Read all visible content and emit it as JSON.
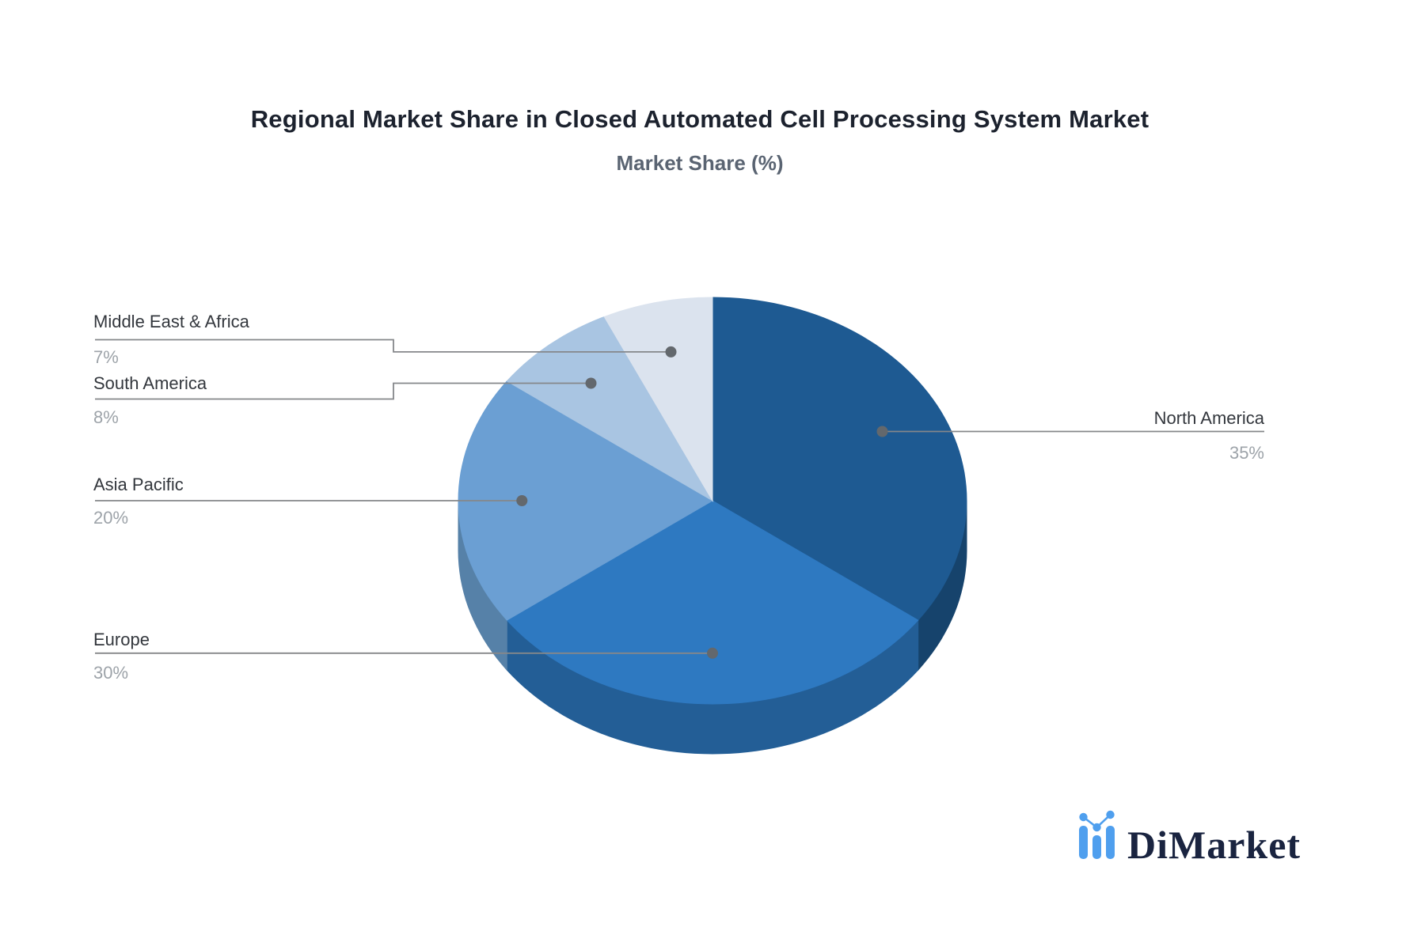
{
  "title": "Regional Market Share in Closed Automated Cell Processing System Market",
  "subtitle": "Market Share (%)",
  "brand": {
    "name": "DiMarket",
    "icon": "bar-chart-dots-icon"
  },
  "colors": {
    "title": "#1c222e",
    "subtitle": "#5a6472",
    "slice_label": "#33373d",
    "percent_label": "#9da3a9",
    "connector": "#85878a",
    "connector_dot": "#63686d",
    "logo_text": "#1a2440",
    "logo_icon": "#4f9fee"
  },
  "chart_data": {
    "type": "pie",
    "title": "Regional Market Share in Closed Automated Cell Processing System Market",
    "subtitle": "Market Share (%)",
    "unit": "%",
    "style": "3d",
    "direction": "clockwise",
    "start_angle_deg": 0,
    "legend_position": "connector-labels",
    "series": [
      {
        "name": "North America",
        "value": 35,
        "label": "35%",
        "color": "#1e5a92",
        "side_color": "#16436c",
        "label_side": "right"
      },
      {
        "name": "Europe",
        "value": 30,
        "label": "30%",
        "color": "#2e79c1",
        "side_color": "#235e96",
        "label_side": "left"
      },
      {
        "name": "Asia Pacific",
        "value": 20,
        "label": "20%",
        "color": "#6b9fd3",
        "side_color": "#5681a8",
        "label_side": "left"
      },
      {
        "name": "South America",
        "value": 8,
        "label": "8%",
        "color": "#a9c5e2",
        "side_color": "#87a4c1",
        "label_side": "left"
      },
      {
        "name": "Middle East & Africa",
        "value": 7,
        "label": "7%",
        "color": "#dbe3ee",
        "side_color": "#b5bfce",
        "label_side": "left"
      }
    ]
  }
}
